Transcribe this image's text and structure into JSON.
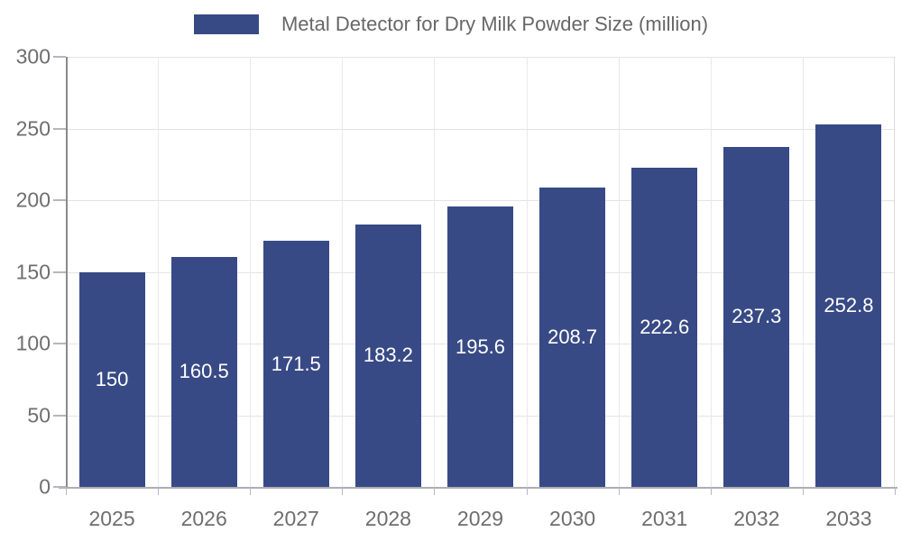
{
  "chart_data": {
    "type": "bar",
    "title": "Metal Detector for Dry Milk Powder Size (million)",
    "categories": [
      "2025",
      "2026",
      "2027",
      "2028",
      "2029",
      "2030",
      "2031",
      "2032",
      "2033"
    ],
    "values": [
      150,
      160.5,
      171.5,
      183.2,
      195.6,
      208.7,
      222.6,
      237.3,
      252.8
    ],
    "value_labels": [
      "150",
      "160.5",
      "171.5",
      "183.2",
      "195.6",
      "208.7",
      "222.6",
      "237.3",
      "252.8"
    ],
    "xlabel": "",
    "ylabel": "",
    "ylim": [
      0,
      300
    ],
    "yticks": [
      0,
      50,
      100,
      150,
      200,
      250,
      300
    ],
    "grid": true,
    "legend_position": "top"
  },
  "legend": {
    "label": "Metal Detector for Dry Milk Powder Size (million)"
  },
  "colors": {
    "bar_fill": "#384a85",
    "bar_value_text": "#ffffff",
    "axis_text": "#6e6e6e",
    "legend_text": "#676767",
    "grid_line": "#e4e4e4",
    "y_axis_line": "#8a8a8a",
    "x_axis_line": "#aeaeb6"
  }
}
